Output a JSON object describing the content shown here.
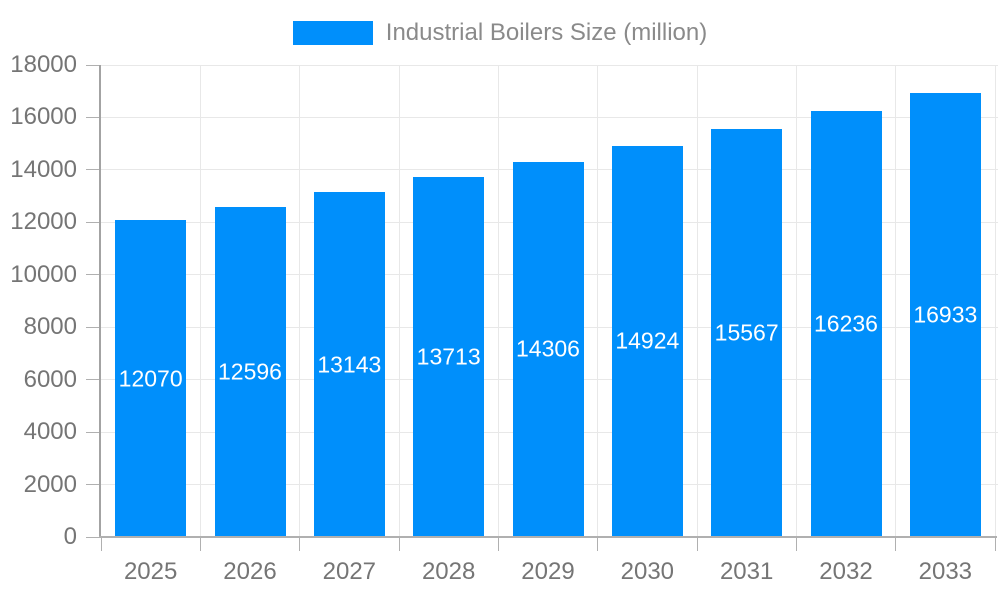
{
  "legend": {
    "label": "Industrial Boilers Size (million)",
    "swatch_color": "#008FFB"
  },
  "chart_data": {
    "type": "bar",
    "title": "Industrial Boilers Size (million)",
    "series_name": "Industrial Boilers Size (million)",
    "categories": [
      "2025",
      "2026",
      "2027",
      "2028",
      "2029",
      "2030",
      "2031",
      "2032",
      "2033"
    ],
    "values": [
      12070,
      12596,
      13143,
      13713,
      14306,
      14924,
      15567,
      16236,
      16933
    ],
    "xlabel": "",
    "ylabel": "",
    "ylim": [
      0,
      18000
    ],
    "yticks": [
      0,
      2000,
      4000,
      6000,
      8000,
      10000,
      12000,
      14000,
      16000,
      18000
    ],
    "grid": true,
    "legend_position": "top",
    "bar_color": "#008FFB",
    "value_label_color": "#ffffff",
    "axis_text_color": "#757575",
    "grid_color": "#e8e8e8",
    "axis_line_color": "#a3a3a3"
  }
}
